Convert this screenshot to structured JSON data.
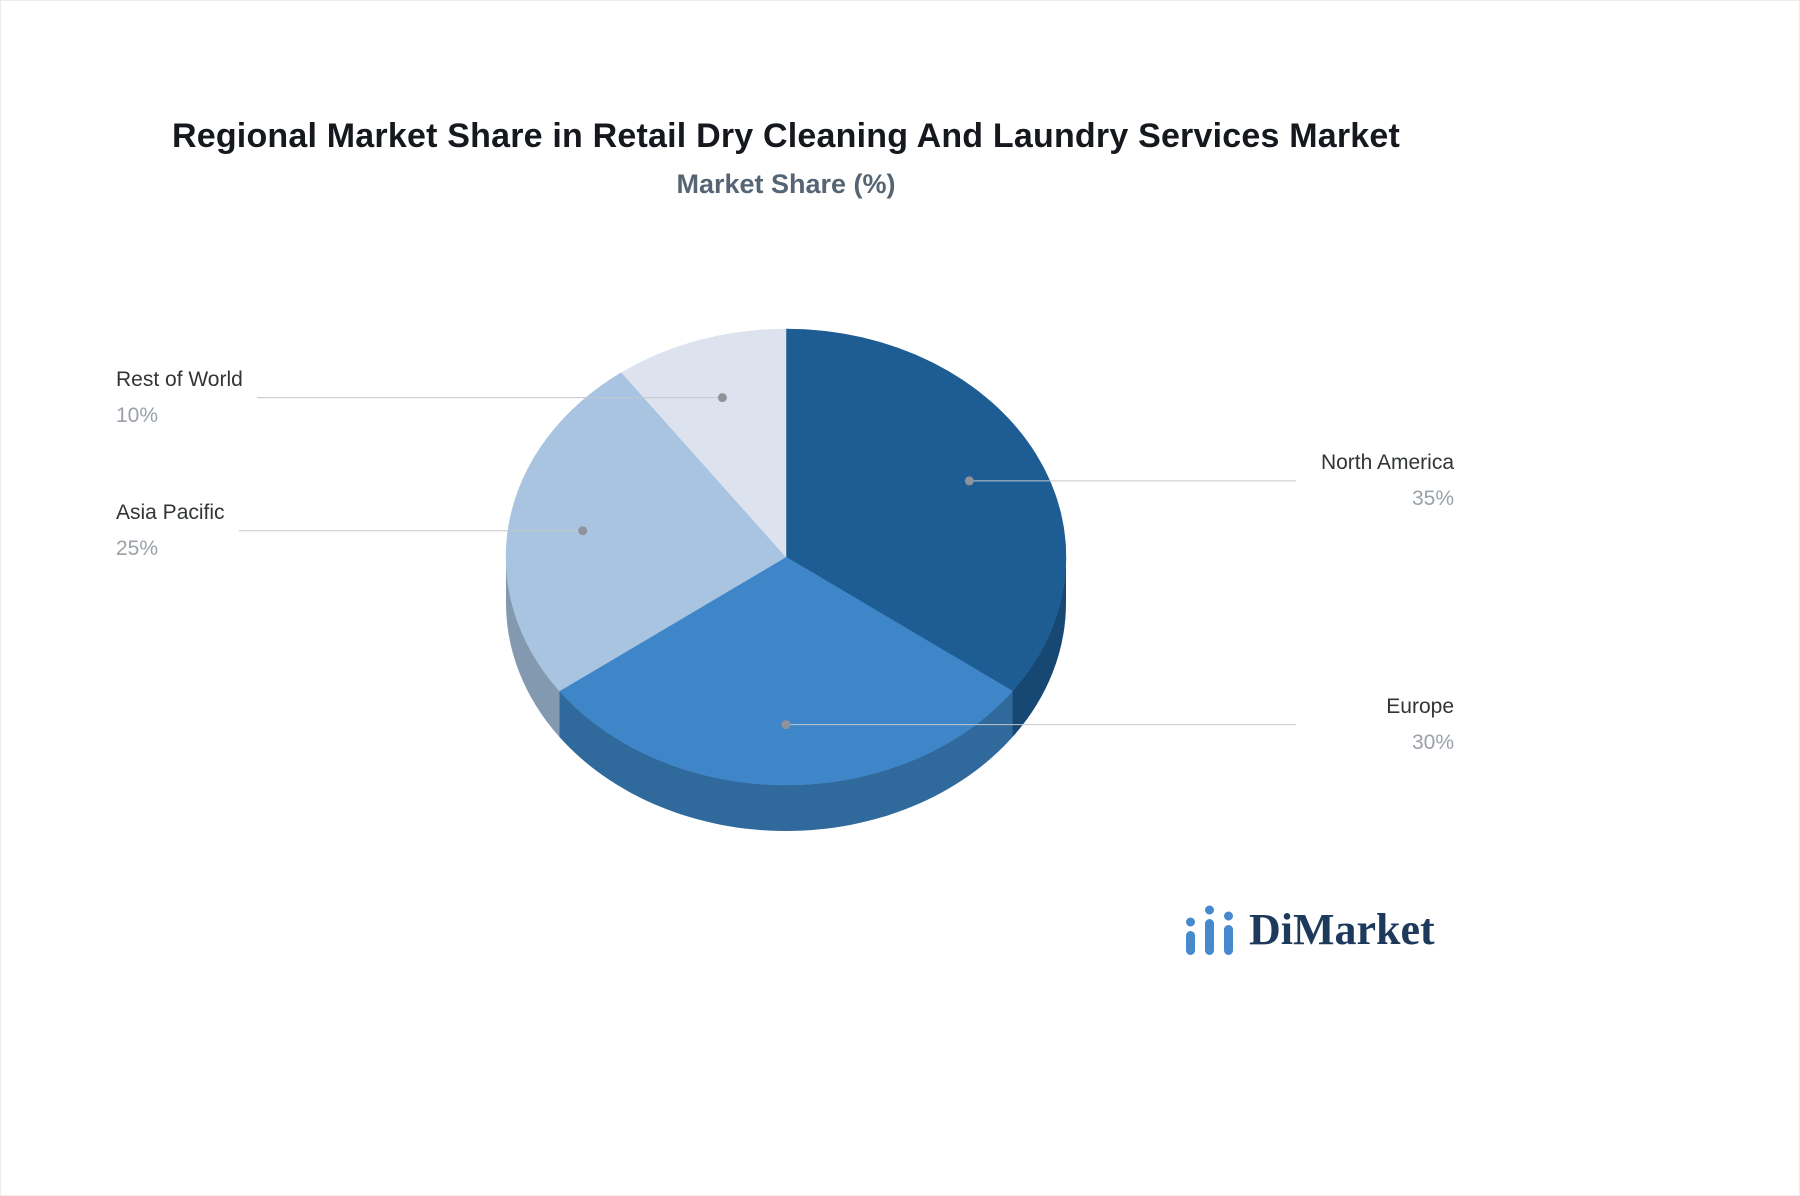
{
  "chart_data": {
    "type": "pie",
    "style": "3d",
    "title": "Regional Market Share in Retail Dry Cleaning And Laundry Services Market",
    "subtitle": "Market Share (%)",
    "unit": "%",
    "start_angle_deg": -90,
    "direction": "clockwise",
    "legend_position": "callout-labels",
    "leader_line_color": "#c3c7cc",
    "leader_dot_color": "#8f949a",
    "slices": [
      {
        "label": "North America",
        "value": 35,
        "display": "35%",
        "color": "#1e5c94"
      },
      {
        "label": "Europe",
        "value": 30,
        "display": "30%",
        "color": "#3e86c7"
      },
      {
        "label": "Asia Pacific",
        "value": 25,
        "display": "25%",
        "color": "#a8c4e1"
      },
      {
        "label": "Rest of World",
        "value": 10,
        "display": "10%",
        "color": "#dce3ee"
      }
    ]
  },
  "branding": {
    "logo_text": "DiMarket",
    "logo_icon": "bar-chart-icon",
    "logo_icon_color": "#4689cc",
    "logo_text_color": "#1d3a5c"
  }
}
